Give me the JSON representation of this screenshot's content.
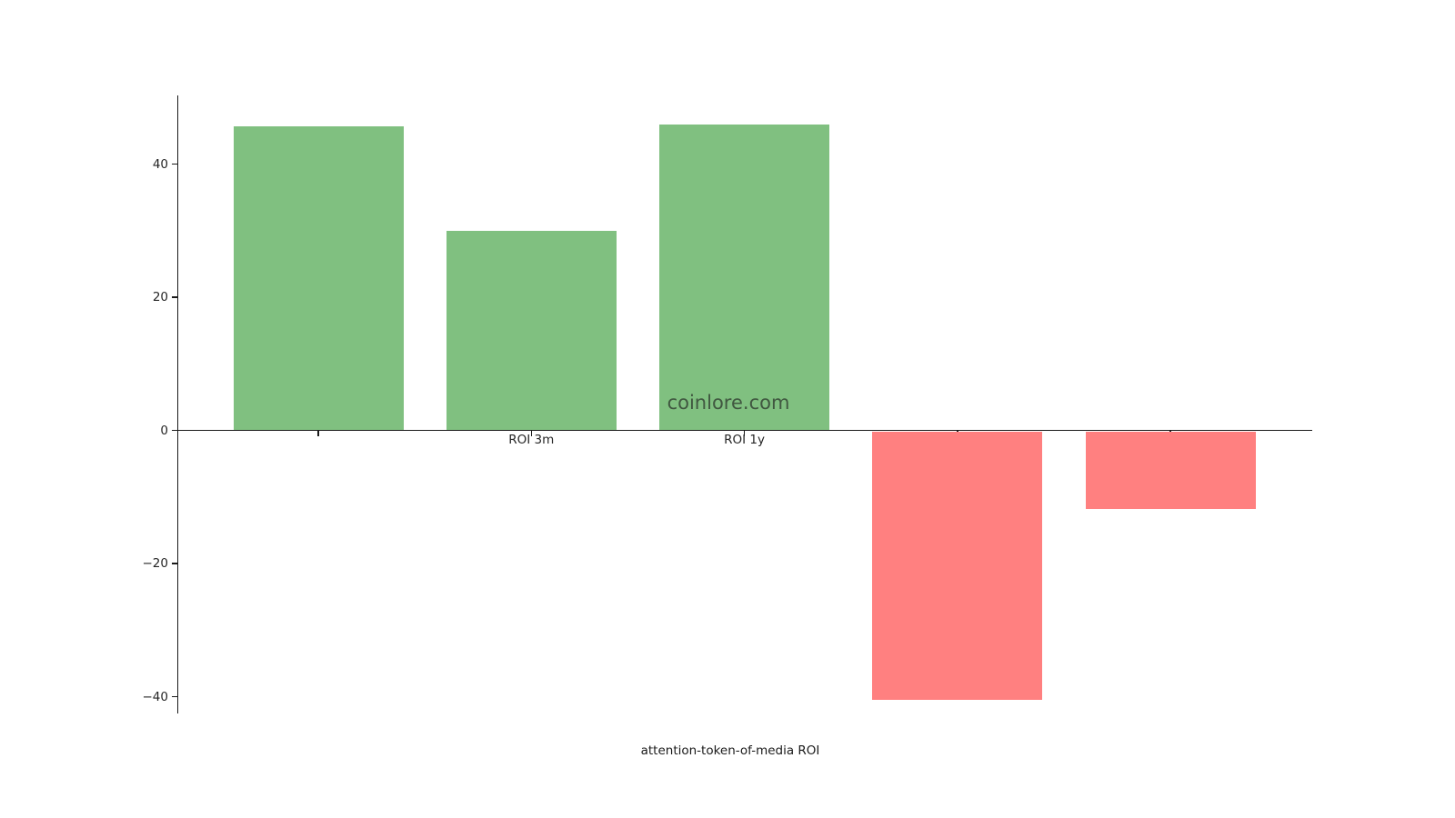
{
  "page": {
    "background": "#ffffff"
  },
  "chart_data": {
    "type": "bar",
    "title": "attention-token-of-media ROI",
    "watermark": "coinlore.com",
    "categories": [
      "",
      "ROI 3m",
      "ROI 1y",
      "",
      ""
    ],
    "values": [
      45.6,
      29.9,
      45.9,
      -40.4,
      -11.7
    ],
    "xlabel": "",
    "ylabel": "",
    "y_ticks": [
      40,
      20,
      0,
      -20,
      -40
    ],
    "y_tick_labels": [
      "40",
      "20",
      "0",
      "−20",
      "−40"
    ],
    "ylim": [
      -42.5,
      50.3
    ],
    "grid": false,
    "legend_position": "none",
    "colors": {
      "positive_bar": "#80c080",
      "negative_bar": "#ff8080",
      "axis": "#1a1a1a",
      "tick_text": "#262626",
      "title_text": "#1a1a1a",
      "watermark_text": "#405740"
    }
  }
}
